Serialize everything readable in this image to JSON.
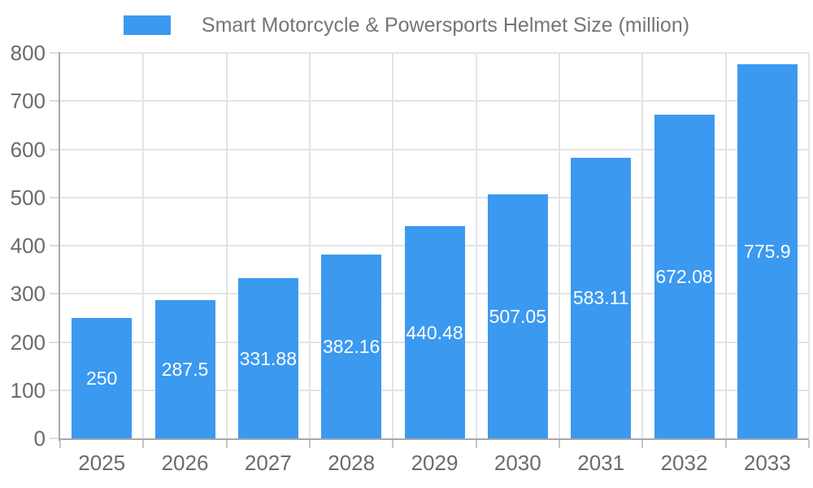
{
  "legend": {
    "label": "Smart Motorcycle & Powersports Helmet Size (million)",
    "swatch_color": "#3b99f0"
  },
  "chart_data": {
    "type": "bar",
    "title": "Smart Motorcycle & Powersports Helmet Size (million)",
    "categories": [
      "2025",
      "2026",
      "2027",
      "2028",
      "2029",
      "2030",
      "2031",
      "2032",
      "2033"
    ],
    "series": [
      {
        "name": "Smart Motorcycle & Powersports Helmet Size (million)",
        "values": [
          250,
          287.5,
          331.88,
          382.16,
          440.48,
          507.05,
          583.11,
          672.08,
          775.9
        ]
      }
    ],
    "value_labels": [
      "250",
      "287.5",
      "331.88",
      "382.16",
      "440.48",
      "507.05",
      "583.11",
      "672.08",
      "775.9"
    ],
    "xlabel": "",
    "ylabel": "",
    "ylim": [
      0,
      800
    ],
    "yticks": [
      0,
      100,
      200,
      300,
      400,
      500,
      600,
      700,
      800
    ],
    "grid": true,
    "legend_position": "top",
    "bar_color": "#3b99f0",
    "bar_label_color": "#ffffff",
    "axis_text_color": "#6b6b6b",
    "title_color": "#757575"
  }
}
